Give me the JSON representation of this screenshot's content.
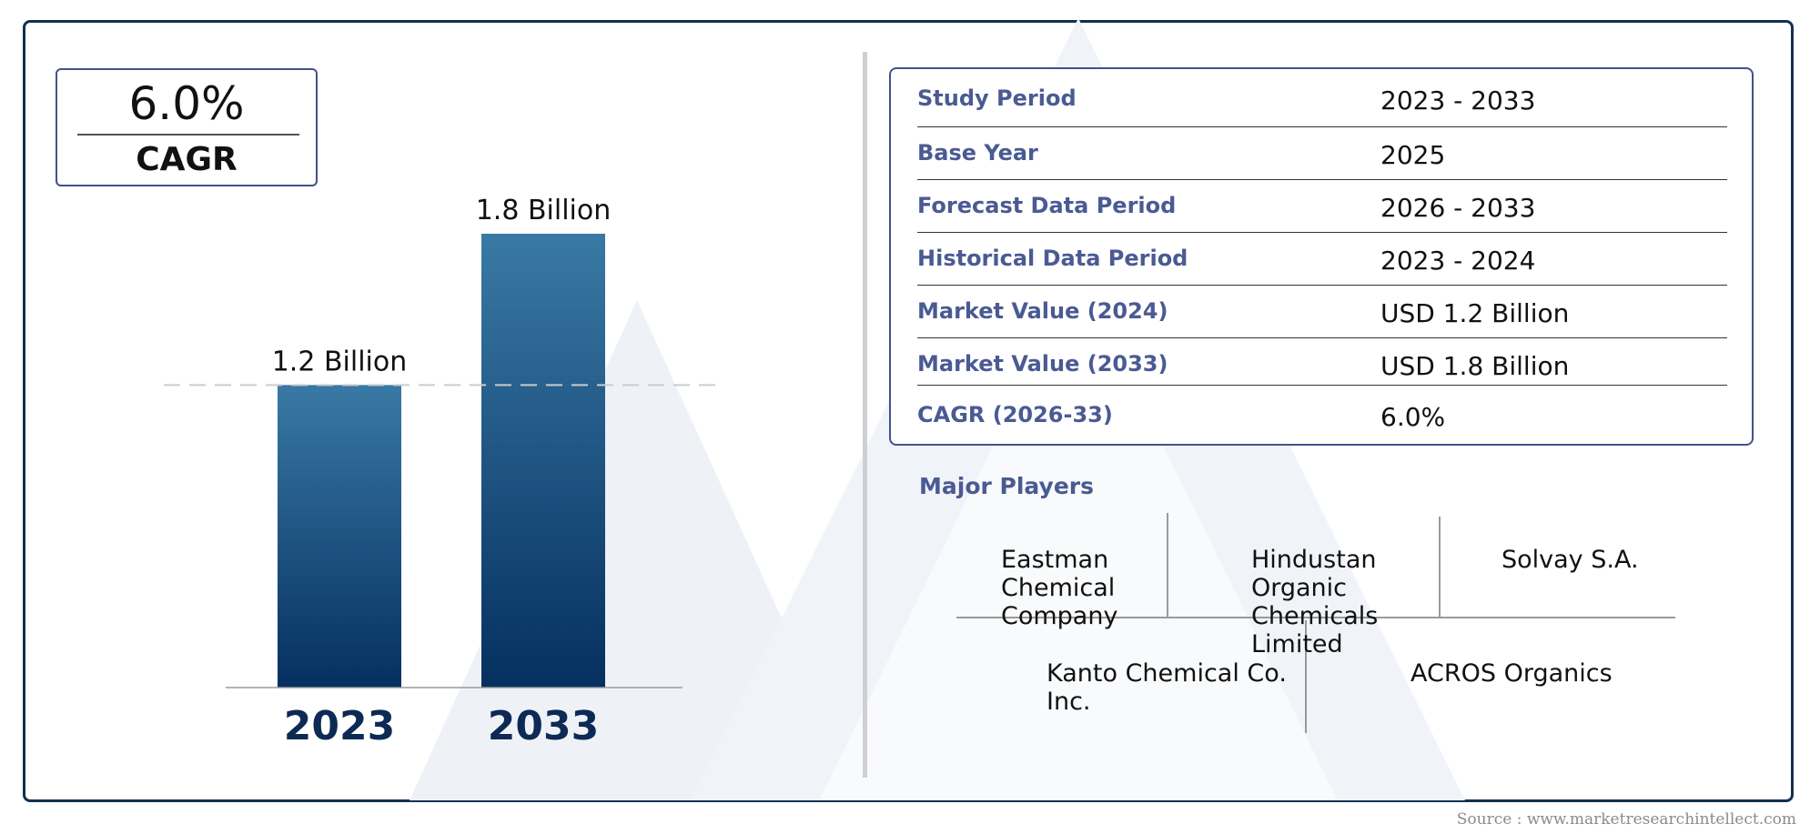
{
  "cagr_box": {
    "value": "6.0%",
    "label": "CAGR"
  },
  "chart_data": {
    "type": "bar",
    "categories": [
      "2023",
      "2033"
    ],
    "values": [
      1.2,
      1.8
    ],
    "data_labels": [
      "1.2 Billion",
      "1.8 Billion"
    ],
    "ylim": [
      0,
      1.8
    ],
    "reference_line": 1.2,
    "bar_color_top": "#3a79a5",
    "bar_color_bottom": "#05305f",
    "category_label_color": "#0d2a54"
  },
  "info_table": [
    {
      "label": "Study Period",
      "value": "2023 - 2033"
    },
    {
      "label": "Base Year",
      "value": "2025"
    },
    {
      "label": "Forecast Data Period",
      "value": "2026 - 2033"
    },
    {
      "label": "Historical Data Period",
      "value": "2023 - 2024"
    },
    {
      "label": "Market Value (2024)",
      "value": "USD 1.2 Billion"
    },
    {
      "label": "Market Value (2033)",
      "value": "USD 1.8 Billion"
    },
    {
      "label": "CAGR (2026-33)",
      "value": "6.0%"
    }
  ],
  "major_players": {
    "title": "Major Players",
    "players": [
      "Eastman Chemical Company",
      "Hindustan Organic Chemicals Limited",
      "Solvay S.A.",
      "Kanto Chemical Co. Inc.",
      "ACROS Organics"
    ]
  },
  "source": "Source : www.marketresearchintellect.com",
  "colors": {
    "frame": "#13314f",
    "accent": "#44518d",
    "label": "#4a5a93"
  }
}
